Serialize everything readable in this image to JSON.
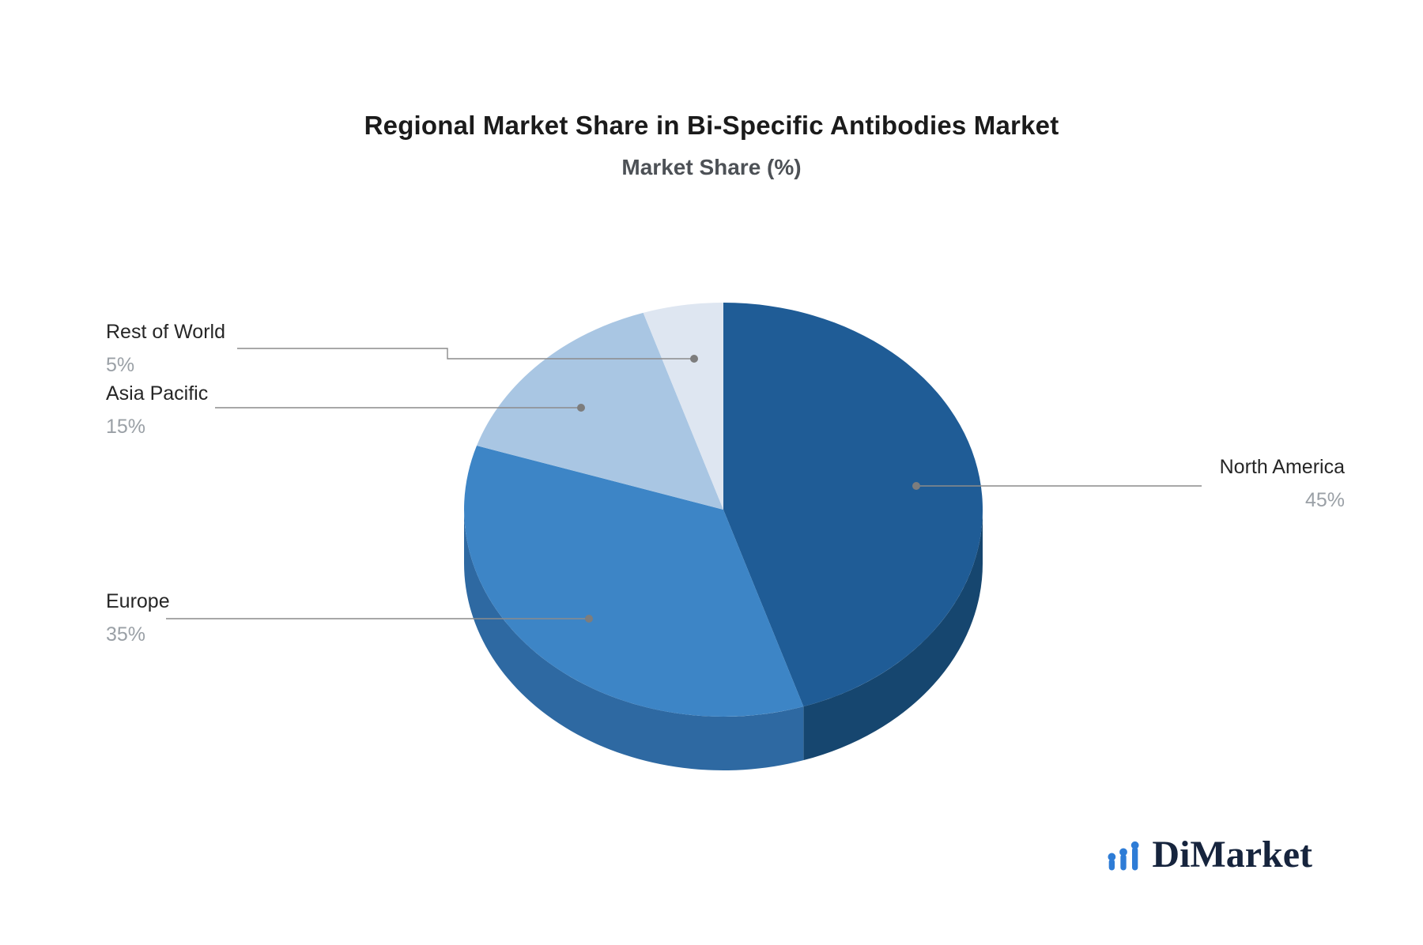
{
  "title": "Regional Market Share in Bi-Specific Antibodies Market",
  "subtitle": "Market Share (%)",
  "brand": {
    "name": "DiMarket"
  },
  "chart_data": {
    "type": "pie",
    "title": "Regional Market Share in Bi-Specific Antibodies Market",
    "subtitle": "Market Share (%)",
    "unit": "%",
    "categories": [
      "North America",
      "Europe",
      "Asia Pacific",
      "Rest of World"
    ],
    "values": [
      45,
      35,
      15,
      5
    ],
    "labels": [
      "45%",
      "35%",
      "15%",
      "5%"
    ],
    "colors": [
      "#1F5C96",
      "#3D85C6",
      "#A9C6E3",
      "#DEE6F1"
    ],
    "side_colors": [
      "#16466F",
      "#2E69A2",
      "#86A8CC",
      "#C2CFDE"
    ],
    "start_angle": 0,
    "direction": "clockwise",
    "legend": "none",
    "effect": "3d"
  }
}
